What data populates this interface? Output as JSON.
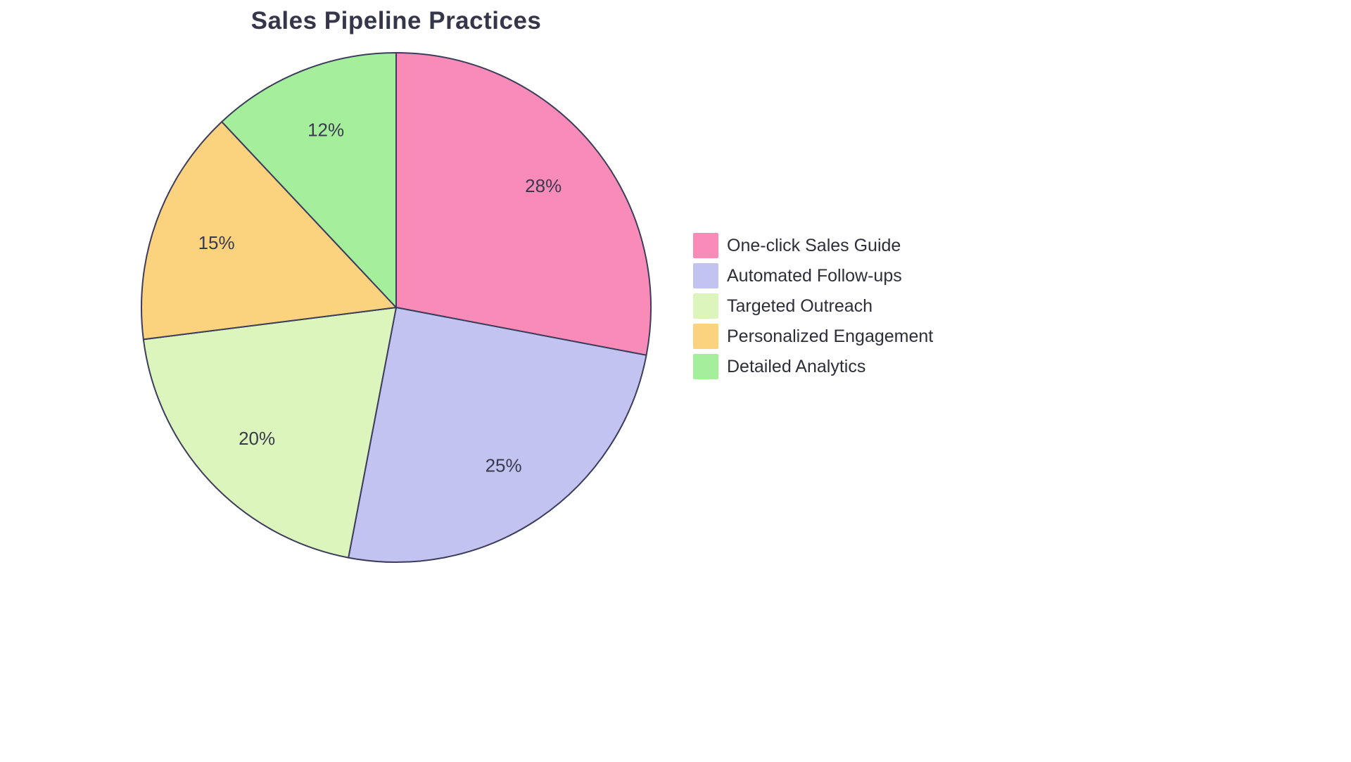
{
  "title": "Sales Pipeline Practices",
  "chart_data": {
    "type": "pie",
    "title": "Sales Pipeline Practices",
    "labels": [
      "One-click Sales Guide",
      "Automated Follow-ups",
      "Targeted Outreach",
      "Personalized Engagement",
      "Detailed Analytics"
    ],
    "values": [
      28,
      25,
      20,
      15,
      12
    ],
    "percent_labels": [
      "28%",
      "25%",
      "20%",
      "15%",
      "12%"
    ],
    "colors": [
      "#F98BB9",
      "#C2C3F1",
      "#DCF5BC",
      "#FBD37F",
      "#A5EE9B"
    ],
    "outline_color": "#3C3D5C",
    "text_color": "#3A3A4E",
    "start_angle_deg": 0,
    "direction": "clockwise",
    "legend_position": "right",
    "label_radius_fraction": 0.75
  }
}
